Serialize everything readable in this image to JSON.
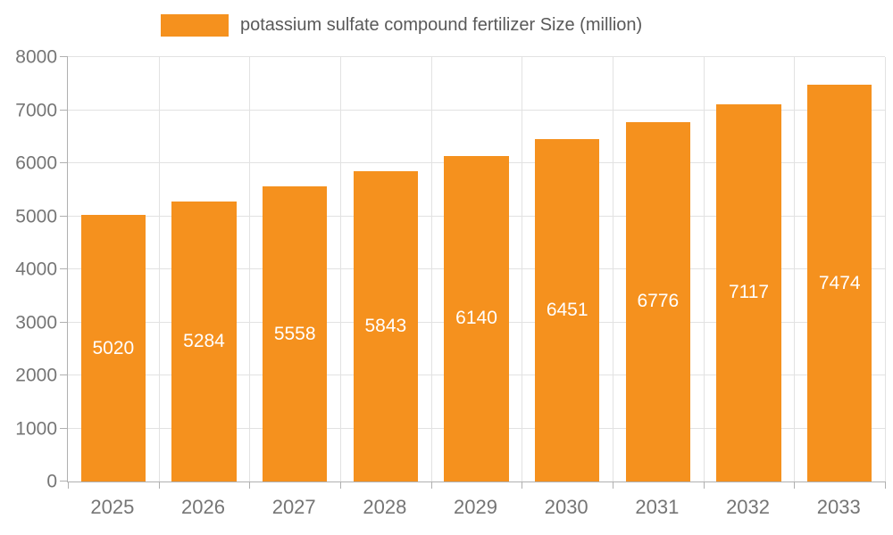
{
  "chart_data": {
    "type": "bar",
    "title": "potassium sulfate compound fertilizer Size (million)",
    "categories": [
      "2025",
      "2026",
      "2027",
      "2028",
      "2029",
      "2030",
      "2031",
      "2032",
      "2033"
    ],
    "values": [
      5020,
      5284,
      5558,
      5843,
      6140,
      6451,
      6776,
      7117,
      7474
    ],
    "xlabel": "",
    "ylabel": "",
    "ylim": [
      0,
      8000
    ],
    "yticks": [
      0,
      1000,
      2000,
      3000,
      4000,
      5000,
      6000,
      7000,
      8000
    ],
    "grid": true,
    "legend_position": "top",
    "bar_color": "#f5911e",
    "bar_label_color": "#ffffff",
    "axis_text_color": "#757575",
    "grid_color": "#e2e2e2",
    "axis_line_color": "#b0b0b0"
  },
  "legend": {
    "label": "potassium sulfate compound fertilizer Size (million)"
  }
}
